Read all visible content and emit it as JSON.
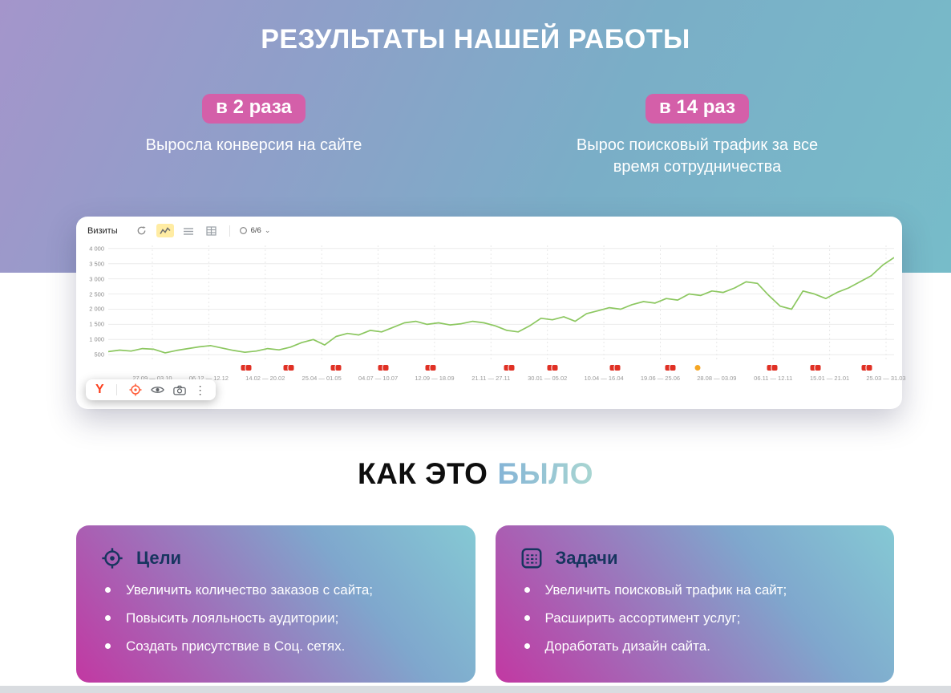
{
  "hero": {
    "title": "РЕЗУЛЬТАТЫ НАШЕЙ РАБОТЫ",
    "badge_color": "#d45fa9",
    "stats": [
      {
        "badge": "в 2 раза",
        "caption": "Выросла конверсия на сайте"
      },
      {
        "badge": "в 14 раз",
        "caption": "Вырос поисковый трафик за все время сотрудничества"
      }
    ]
  },
  "chart_data": {
    "type": "line",
    "title": "Визиты",
    "toolbar": {
      "metric_counter": "6/6",
      "icons": [
        "refresh-icon",
        "line-chart-icon",
        "stacked-lines-icon",
        "table-icon",
        "metric-selector"
      ]
    },
    "ylim": [
      400,
      4100
    ],
    "yticks": [
      500,
      1000,
      1500,
      2000,
      2500,
      3000,
      3500,
      4000
    ],
    "ytick_labels": [
      "500",
      "1 000",
      "1 500",
      "2 000",
      "2 500",
      "3 000",
      "3 500",
      "4 000"
    ],
    "x_labels": [
      "27.09 — 03.10",
      "06.12 — 12.12",
      "14.02 — 20.02",
      "25.04 — 01.05",
      "04.07 — 10.07",
      "12.09 — 18.09",
      "21.11 — 27.11",
      "30.01 — 05.02",
      "10.04 — 16.04",
      "19.06 — 25.06",
      "28.08 — 03.09",
      "06.11 — 12.11",
      "15.01 — 21.01",
      "25.03 — 31.03"
    ],
    "grid": true,
    "legend": "none",
    "series": [
      {
        "name": "Визиты",
        "color": "#8cc760",
        "values": [
          600,
          650,
          620,
          700,
          680,
          560,
          640,
          700,
          760,
          800,
          720,
          640,
          580,
          620,
          700,
          660,
          750,
          900,
          1000,
          820,
          1100,
          1200,
          1150,
          1300,
          1250,
          1400,
          1550,
          1600,
          1500,
          1550,
          1480,
          1520,
          1600,
          1550,
          1450,
          1300,
          1250,
          1450,
          1700,
          1650,
          1750,
          1600,
          1850,
          1950,
          2050,
          2000,
          2150,
          2250,
          2200,
          2350,
          2300,
          2500,
          2450,
          2600,
          2550,
          2700,
          2900,
          2850,
          2450,
          2100,
          2000,
          2600,
          2500,
          2350,
          2550,
          2700,
          2900,
          3100,
          3450,
          3700
        ]
      }
    ],
    "markers": [
      {
        "pos": 0.175,
        "color": "#e03024",
        "shape": "pair"
      },
      {
        "pos": 0.23,
        "color": "#e03024",
        "shape": "pair"
      },
      {
        "pos": 0.29,
        "color": "#e03024",
        "shape": "pair"
      },
      {
        "pos": 0.35,
        "color": "#e03024",
        "shape": "pair"
      },
      {
        "pos": 0.41,
        "color": "#e03024",
        "shape": "pair"
      },
      {
        "pos": 0.51,
        "color": "#e03024",
        "shape": "pair"
      },
      {
        "pos": 0.565,
        "color": "#e03024",
        "shape": "pair"
      },
      {
        "pos": 0.645,
        "color": "#e03024",
        "shape": "pair"
      },
      {
        "pos": 0.715,
        "color": "#e03024",
        "shape": "pair"
      },
      {
        "pos": 0.75,
        "color": "#f5a623",
        "shape": "circle"
      },
      {
        "pos": 0.845,
        "color": "#e03024",
        "shape": "pair"
      },
      {
        "pos": 0.9,
        "color": "#e03024",
        "shape": "pair"
      },
      {
        "pos": 0.965,
        "color": "#e03024",
        "shape": "pair"
      }
    ],
    "overlay_toolbar": [
      "yandex-metrika-logo",
      "select-element-icon",
      "eye-icon",
      "camera-icon",
      "kebab-menu-icon"
    ]
  },
  "how_section": {
    "title_main": "КАК ЭТО",
    "title_accent": "БЫЛО",
    "accent_colors": [
      "#85b4d6",
      "#a9d6d2"
    ],
    "cards": [
      {
        "title": "Цели",
        "icon": "target-icon",
        "items": [
          "Увеличить количество заказов с сайта;",
          "Повысить лояльность аудитории;",
          "Создать присутствие в Соц. сетях."
        ]
      },
      {
        "title": "Задачи",
        "icon": "checklist-icon",
        "items": [
          "Увеличить поисковый трафик на сайт;",
          "Расширить ассортимент услуг;",
          "Доработать дизайн сайта."
        ]
      }
    ]
  }
}
